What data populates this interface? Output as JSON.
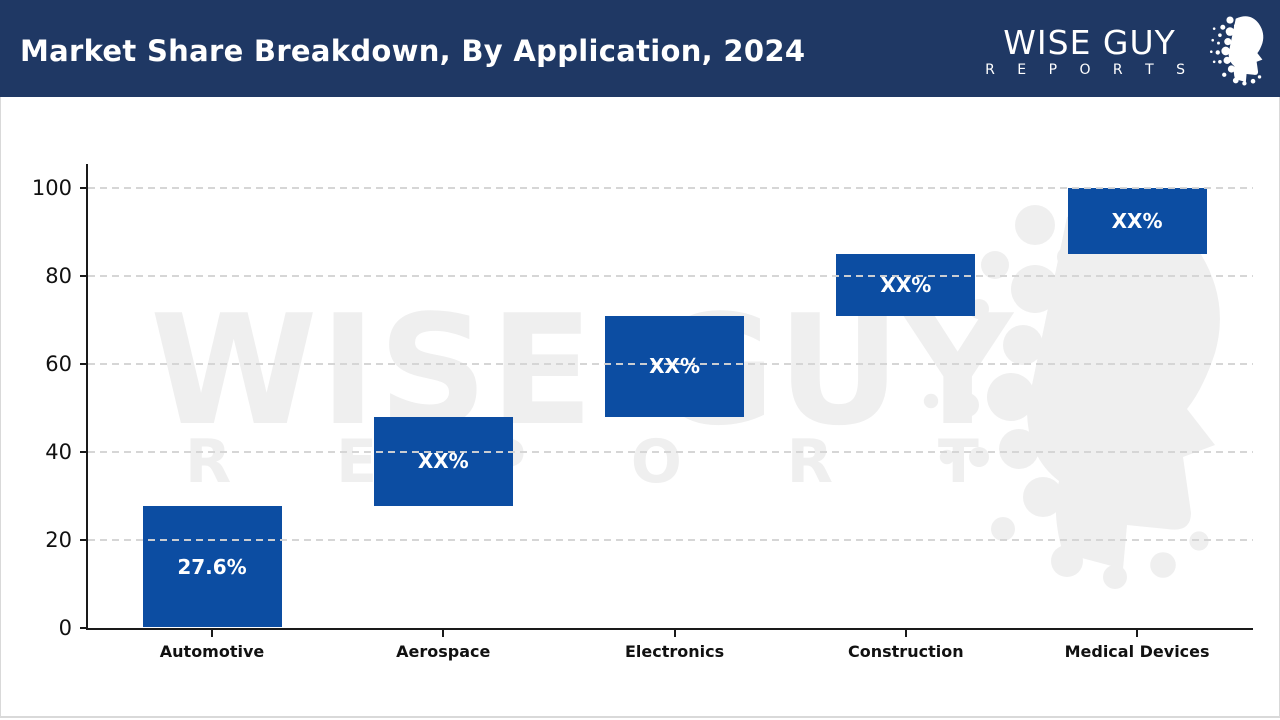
{
  "header": {
    "title": "Market Share Breakdown, By Application, 2024",
    "logo_line1": "WISE GUY",
    "logo_line2": "R E P O R T S"
  },
  "watermark": {
    "line1": "WISE GUY",
    "line2": "R E P O R T S"
  },
  "chart_data": {
    "type": "bar",
    "subtype": "waterfall",
    "title": "Market Share Breakdown, By Application, 2024",
    "categories": [
      "Automotive",
      "Aerospace",
      "Electronics",
      "Construction",
      "Medical Devices"
    ],
    "series": [
      {
        "name": "Market Share",
        "segments": [
          {
            "category": "Automotive",
            "start": 0,
            "end": 27.6,
            "label": "27.6%"
          },
          {
            "category": "Aerospace",
            "start": 27.6,
            "end": 48,
            "label": "XX%"
          },
          {
            "category": "Electronics",
            "start": 48,
            "end": 71,
            "label": "XX%"
          },
          {
            "category": "Construction",
            "start": 71,
            "end": 85,
            "label": "XX%"
          },
          {
            "category": "Medical Devices",
            "start": 85,
            "end": 100,
            "label": "XX%"
          }
        ]
      }
    ],
    "yticks": [
      0,
      20,
      40,
      60,
      80,
      100
    ],
    "ylim": [
      0,
      105
    ],
    "xlabel": "",
    "ylabel": "",
    "grid": true,
    "legend": false,
    "colors": {
      "bar": "#0c4da2",
      "bar_label": "#ffffff",
      "grid": "#d4d4d4",
      "axis": "#1a1a1a",
      "header_bg": "#1f3864",
      "watermark": "#efefef"
    }
  }
}
